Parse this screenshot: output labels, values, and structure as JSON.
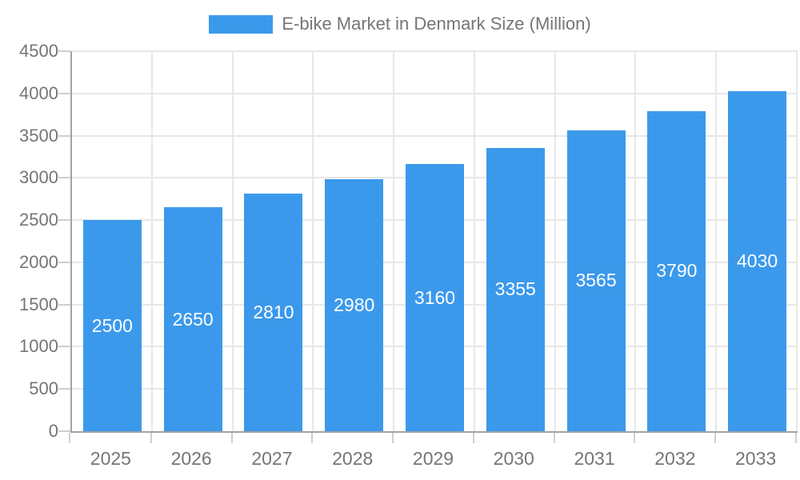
{
  "legend": {
    "label": "E-bike Market in Denmark Size (Million)"
  },
  "colors": {
    "bar": "#3B99EC",
    "axis_text": "#757575",
    "axis_line": "#a3a3a3",
    "grid_line": "#e7e7e7",
    "tick_line": "#cfcfcf",
    "bar_label": "#ffffff",
    "background": "#ffffff"
  },
  "chart_data": {
    "type": "bar",
    "title": "E-bike Market in Denmark Size (Million)",
    "categories": [
      "2025",
      "2026",
      "2027",
      "2028",
      "2029",
      "2030",
      "2031",
      "2032",
      "2033"
    ],
    "values": [
      2500,
      2650,
      2810,
      2980,
      3160,
      3355,
      3565,
      3790,
      4030
    ],
    "xlabel": "",
    "ylabel": "",
    "ylim": [
      0,
      4500
    ],
    "ytick_step": 500,
    "yticks": [
      0,
      500,
      1000,
      1500,
      2000,
      2500,
      3000,
      3500,
      4000,
      4500
    ],
    "grid": true,
    "legend_position": "top",
    "bar_labels_visible": true,
    "bar_label_position": "center"
  }
}
